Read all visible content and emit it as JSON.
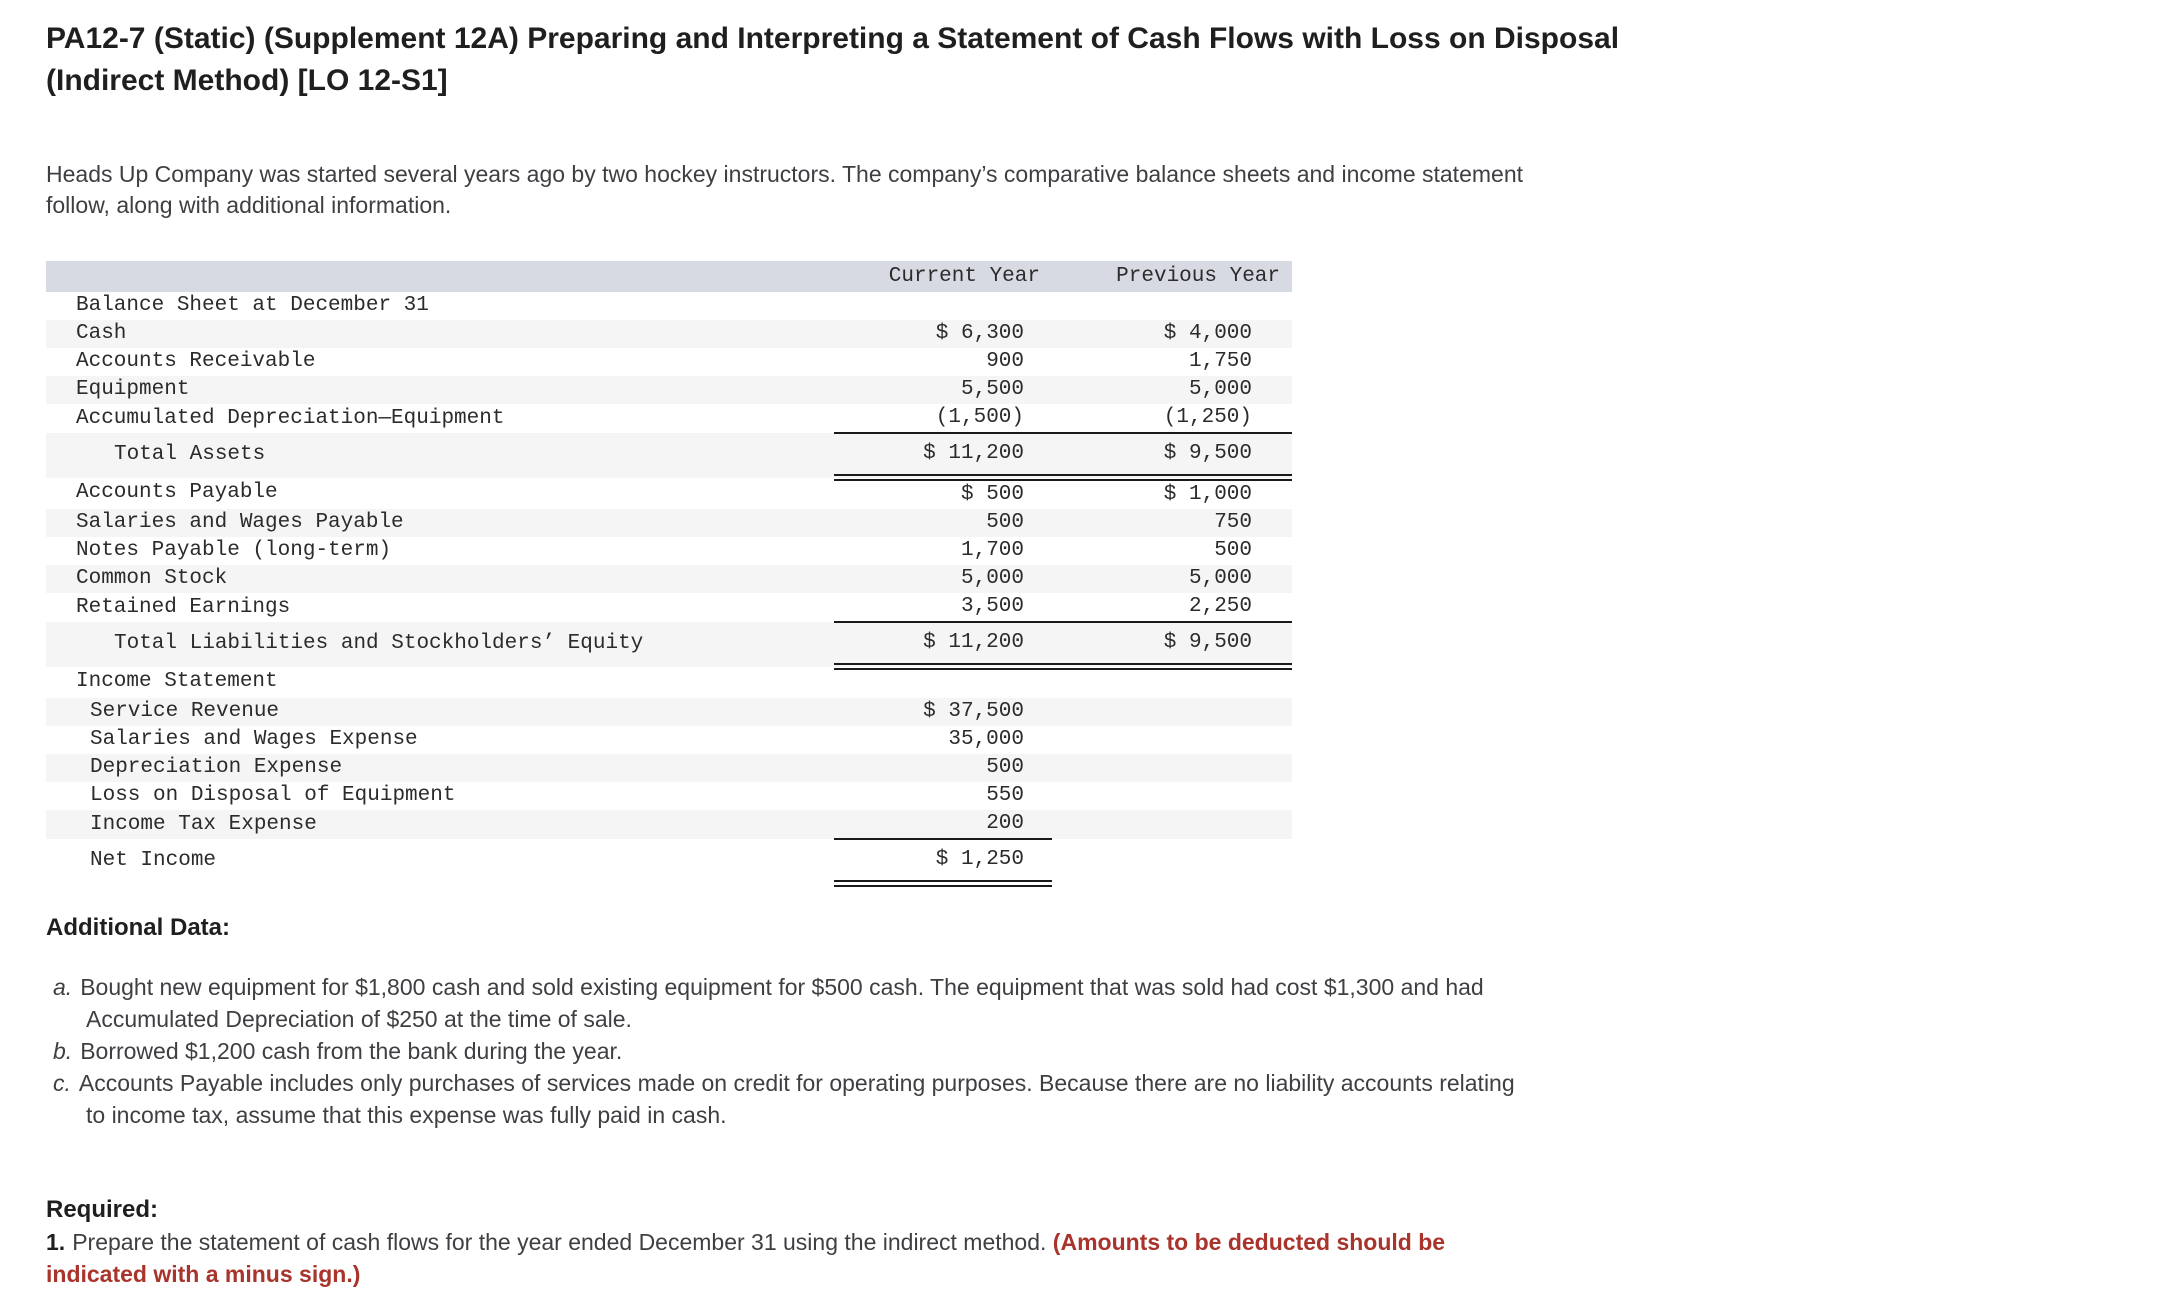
{
  "title": "PA12-7 (Static) (Supplement 12A) Preparing and Interpreting a Statement of Cash Flows with Loss on Disposal (Indirect Method) [LO 12-S1]",
  "intro": "Heads Up Company was started several years ago by two hockey instructors. The company’s comparative balance sheets and income statement follow, along with additional information.",
  "table": {
    "columns": [
      "Current Year",
      "Previous Year"
    ],
    "rows": [
      {
        "label": "Balance Sheet at December 31",
        "current": "",
        "previous": "",
        "indent": 0
      },
      {
        "label": "Cash",
        "current": "$ 6,300",
        "previous": "$ 4,000",
        "indent": 0
      },
      {
        "label": "Accounts Receivable",
        "current": "900",
        "previous": "1,750",
        "indent": 0
      },
      {
        "label": "Equipment",
        "current": "5,500",
        "previous": "5,000",
        "indent": 0
      },
      {
        "label": "Accumulated Depreciation—Equipment",
        "current": "(1,500)",
        "previous": "(1,250)",
        "indent": 0,
        "rule_current": "single",
        "rule_previous": "single"
      },
      {
        "label": "Total Assets",
        "current": "$ 11,200",
        "previous": "$ 9,500",
        "indent": 2,
        "total": true,
        "rule_current": "double",
        "rule_previous": "double"
      },
      {
        "label": "Accounts Payable",
        "current": "$ 500",
        "previous": "$ 1,000",
        "indent": 0
      },
      {
        "label": "Salaries and Wages Payable",
        "current": "500",
        "previous": "750",
        "indent": 0
      },
      {
        "label": "Notes Payable (long-term)",
        "current": "1,700",
        "previous": "500",
        "indent": 0
      },
      {
        "label": "Common Stock",
        "current": "5,000",
        "previous": "5,000",
        "indent": 0
      },
      {
        "label": "Retained Earnings",
        "current": "3,500",
        "previous": "2,250",
        "indent": 0,
        "rule_current": "single",
        "rule_previous": "single"
      },
      {
        "label": "Total Liabilities and Stockholders’ Equity",
        "current": "$ 11,200",
        "previous": "$ 9,500",
        "indent": 2,
        "total": true,
        "rule_current": "double",
        "rule_previous": "double"
      },
      {
        "label": "Income Statement",
        "current": "",
        "previous": "",
        "indent": 0
      },
      {
        "label": "Service Revenue",
        "current": "$ 37,500",
        "previous": "",
        "indent": 1
      },
      {
        "label": "Salaries and Wages Expense",
        "current": "35,000",
        "previous": "",
        "indent": 1
      },
      {
        "label": "Depreciation Expense",
        "current": "500",
        "previous": "",
        "indent": 1
      },
      {
        "label": "Loss on Disposal of Equipment",
        "current": "550",
        "previous": "",
        "indent": 1
      },
      {
        "label": "Income Tax Expense",
        "current": "200",
        "previous": "",
        "indent": 1,
        "rule_current": "single"
      },
      {
        "label": "Net Income",
        "current": "$ 1,250",
        "previous": "",
        "indent": 1,
        "total": true,
        "rule_current": "double"
      }
    ]
  },
  "additional_data": {
    "heading": "Additional Data:",
    "items": [
      {
        "letter": "a.",
        "text": "Bought new equipment for $1,800 cash and sold existing equipment for $500 cash. The equipment that was sold had cost $1,300 and had Accumulated Depreciation of $250 at the time of sale."
      },
      {
        "letter": "b.",
        "text": "Borrowed $1,200 cash from the bank during the year."
      },
      {
        "letter": "c.",
        "text": "Accounts Payable includes only purchases of services made on credit for operating purposes. Because there are no liability accounts relating to income tax, assume that this expense was fully paid in cash."
      }
    ]
  },
  "required": {
    "heading": "Required:",
    "number": "1.",
    "text": "Prepare the statement of cash flows for the year ended December 31 using the indirect method. ",
    "note": "(Amounts to be deducted should be indicated with a minus sign.)"
  },
  "colors": {
    "table_header_band": "#d7dae2",
    "row_stripe": "#f5f5f5",
    "rule_line": "#1a1a1a",
    "note_red": "#a8342c",
    "heading_text": "#1f1f1f",
    "body_text": "#3d3f42"
  }
}
